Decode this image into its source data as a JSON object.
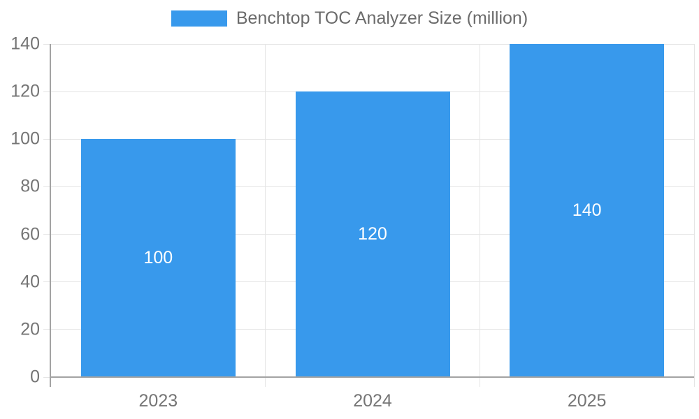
{
  "chart_data": {
    "type": "bar",
    "categories": [
      "2023",
      "2024",
      "2025"
    ],
    "values": [
      100,
      120,
      140
    ],
    "series_name": "Benchtop TOC Analyzer Size (million)",
    "title": "Benchtop TOC Analyzer Size (million)",
    "xlabel": "",
    "ylabel": "",
    "ylim": [
      0,
      140
    ],
    "yticks": [
      0,
      20,
      40,
      60,
      80,
      100,
      120,
      140
    ],
    "grid": true,
    "legend_position": "top-center",
    "data_labels": "inside-center"
  },
  "colors": {
    "bar": "#3899ec",
    "axis_line": "#a3a3a3",
    "gridline": "#e5e5e5",
    "tick_label": "#757575",
    "legend_text": "#6b6b6b",
    "data_label": "#ffffff",
    "background": "#ffffff"
  }
}
